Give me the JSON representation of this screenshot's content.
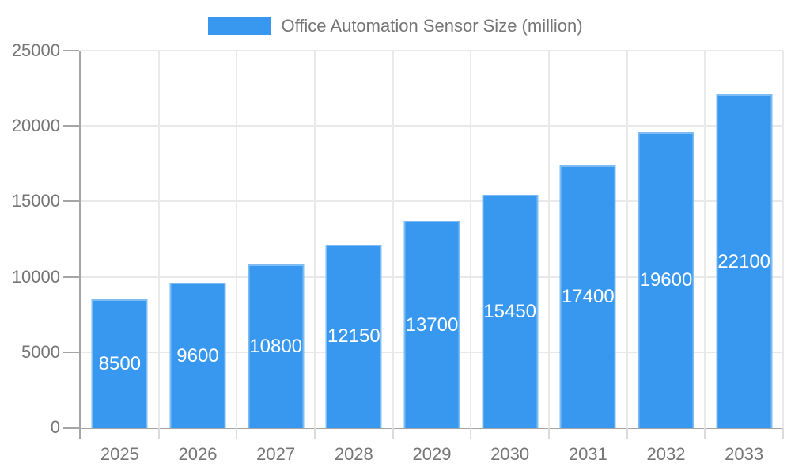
{
  "chart_data": {
    "type": "bar",
    "title": "Office Automation Sensor Size (million)",
    "categories": [
      "2025",
      "2026",
      "2027",
      "2028",
      "2029",
      "2030",
      "2031",
      "2032",
      "2033"
    ],
    "values": [
      8500,
      9600,
      10800,
      12150,
      13700,
      15450,
      17400,
      19600,
      22100
    ],
    "xlabel": "",
    "ylabel": "",
    "ylim": [
      0,
      25000
    ],
    "y_ticks": [
      0,
      5000,
      10000,
      15000,
      20000,
      25000
    ],
    "grid": true,
    "legend_position": "top-center",
    "value_labels": "inside-center",
    "colors": {
      "bar": "#3898EF",
      "bar_edge": "rgba(255,255,255,0.35)",
      "grid_line": "#E9E9E9",
      "axis_line": "#A5A5A5",
      "y_tick": "#A5A5A5",
      "x_tick": "#DCDCDC",
      "axis_text": "#757575",
      "value_label": "#FFFFFF",
      "background": "#FFFFFF"
    }
  }
}
